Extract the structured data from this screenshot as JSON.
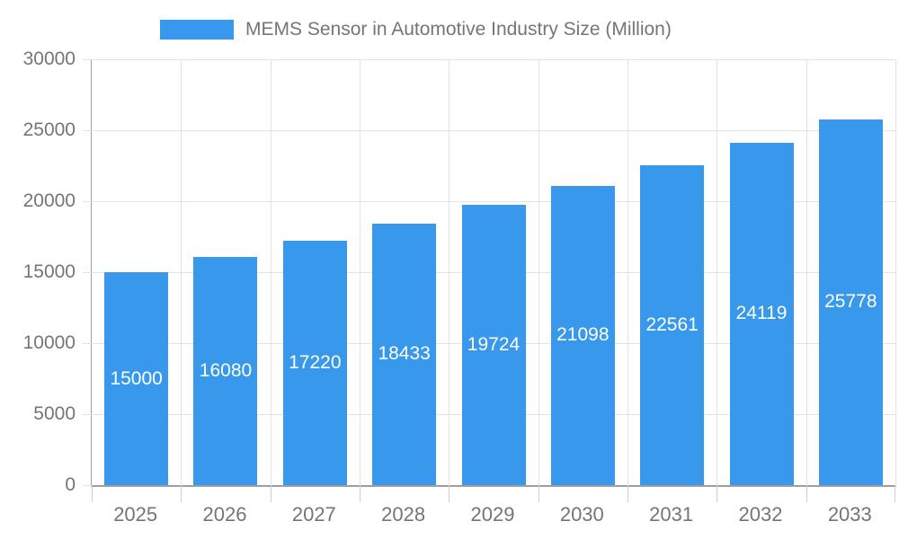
{
  "chart_data": {
    "type": "bar",
    "title": "MEMS Sensor in Automotive Industry Size (Million)",
    "legend_position": "top-center",
    "grid": true,
    "categories": [
      "2025",
      "2026",
      "2027",
      "2028",
      "2029",
      "2030",
      "2031",
      "2032",
      "2033"
    ],
    "values": [
      15000,
      16080,
      17220,
      18433,
      19724,
      21098,
      22561,
      24119,
      25778
    ],
    "value_labels_inside_bars": true,
    "xlabel": "",
    "ylabel": "",
    "ylim": [
      0,
      30000
    ],
    "yticks": [
      0,
      5000,
      10000,
      15000,
      20000,
      25000,
      30000
    ],
    "colors": {
      "bar": "#3898EC",
      "bar_label": "#FFFFFF",
      "axis_text": "#757575",
      "axis_line": "#9E9E9E",
      "gridline": "#E3E3E3",
      "tick": "#CFCFCF",
      "background": "#FFFFFF"
    }
  }
}
